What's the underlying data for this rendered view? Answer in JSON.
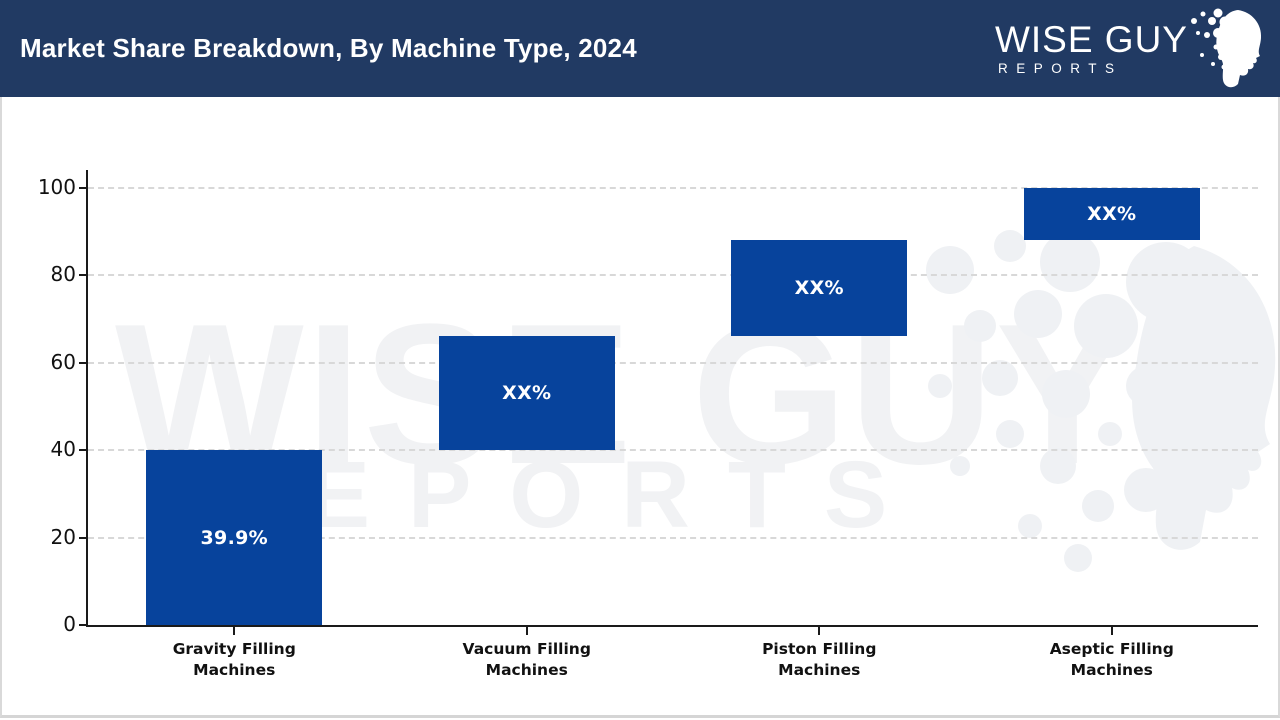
{
  "header": {
    "title": "Market Share Breakdown, By Machine Type, 2024",
    "logo": {
      "wordmark": "WISE GUY",
      "subtitle": "REPORTS"
    }
  },
  "watermark": {
    "line1": "WISE GUY",
    "line2": "REPORTS"
  },
  "colors": {
    "header_bg": "#213a63",
    "bar_blue": "#07439c",
    "grid_gray": "#d8d8d8",
    "axis_black": "#1a1a1a",
    "value_label_white": "#ffffff",
    "watermark_gray": "#f1f2f4"
  },
  "chart_data": {
    "type": "bar",
    "subtype": "floating-waterfall",
    "title": "Market Share Breakdown, By Machine Type, 2024",
    "xlabel": "",
    "ylabel": "",
    "ylim": [
      0,
      104
    ],
    "yticks": [
      0,
      20,
      40,
      60,
      80,
      100
    ],
    "grid": "horizontal-dashed",
    "categories": [
      [
        "Gravity Filling",
        "Machines"
      ],
      [
        "Vacuum Filling",
        "Machines"
      ],
      [
        "Piston Filling",
        "Machines"
      ],
      [
        "Aseptic Filling",
        "Machines"
      ]
    ],
    "bars": [
      {
        "label": "39.9%",
        "start": 0,
        "end": 39.9
      },
      {
        "label": "XX%",
        "start": 40,
        "end": 66
      },
      {
        "label": "XX%",
        "start": 66,
        "end": 87.9
      },
      {
        "label": "XX%",
        "start": 87.9,
        "end": 100
      }
    ]
  }
}
